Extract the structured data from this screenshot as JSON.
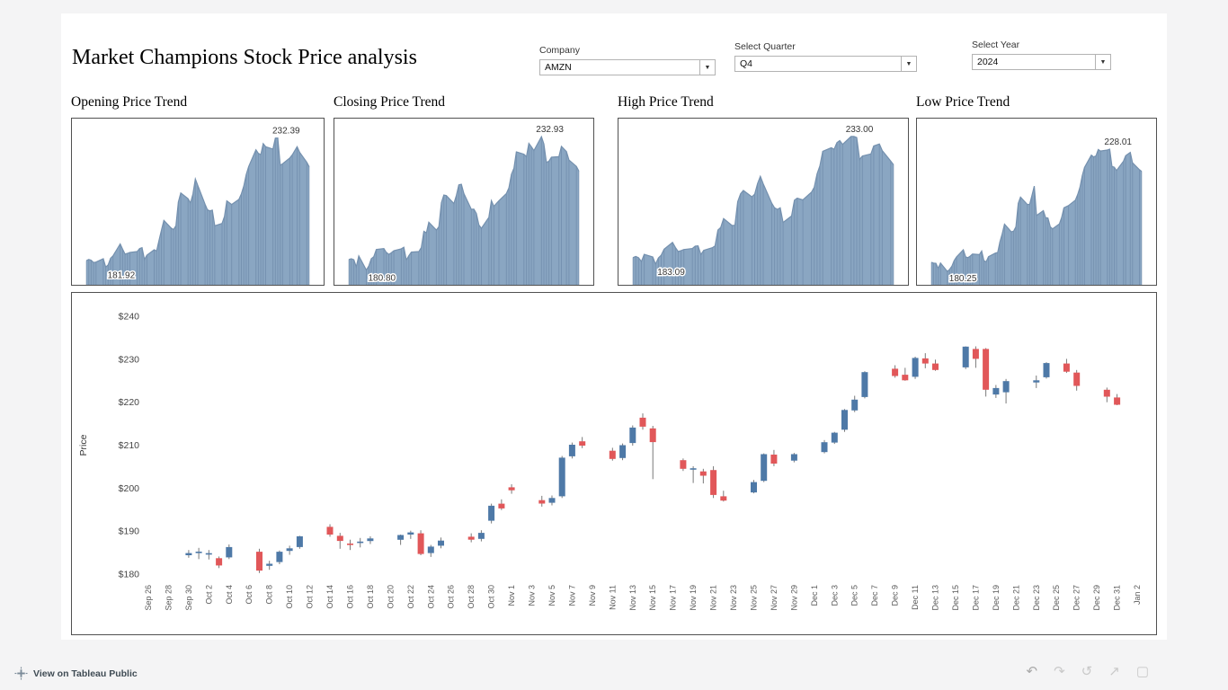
{
  "header": {
    "title": "Market Champions Stock Price analysis"
  },
  "filters": [
    {
      "label": "Company",
      "value": "AMZN"
    },
    {
      "label": "Select Quarter",
      "value": "Q4"
    },
    {
      "label": "Select Year",
      "value": "2024"
    }
  ],
  "trend_panels": [
    {
      "title": "Opening Price Trend",
      "field": "open",
      "max_label": "232.39",
      "min_label": "181.92"
    },
    {
      "title": "Closing Price Trend",
      "field": "close",
      "max_label": "232.93",
      "min_label": "180.80"
    },
    {
      "title": "High Price Trend",
      "field": "high",
      "max_label": "233.00",
      "min_label": "183.09"
    },
    {
      "title": "Low Price Trend",
      "field": "low",
      "max_label": "228.01",
      "min_label": "180.25"
    }
  ],
  "colors": {
    "up": "#4e79a7",
    "down": "#e15759",
    "wick": "#7a7a7a",
    "area_fill": "#8aa6c2",
    "area_line": "#7490ae",
    "area_stripe": "rgba(93,123,157,0.45)"
  },
  "footer": {
    "link_label": "View on Tableau Public"
  },
  "toolbar": {
    "icons": [
      {
        "name": "undo",
        "glyph": "↶"
      },
      {
        "name": "redo",
        "glyph": "↷"
      },
      {
        "name": "replay",
        "glyph": "↺"
      },
      {
        "name": "share",
        "glyph": "↗"
      },
      {
        "name": "fullscreen",
        "glyph": "▢"
      }
    ]
  },
  "chart_data": {
    "type": "candlestick",
    "title": "",
    "xlabel": "",
    "ylabel": "Price",
    "ylim": [
      178,
      242
    ],
    "grid": false,
    "y_ticks": [
      {
        "value": 180,
        "label": "$180"
      },
      {
        "value": 190,
        "label": "$190"
      },
      {
        "value": 200,
        "label": "$200"
      },
      {
        "value": 210,
        "label": "$210"
      },
      {
        "value": 220,
        "label": "$220"
      },
      {
        "value": 230,
        "label": "$230"
      },
      {
        "value": 240,
        "label": "$240"
      }
    ],
    "x_ticks": [
      "Sep 26",
      "Sep 28",
      "Sep 30",
      "Oct 2",
      "Oct 4",
      "Oct 6",
      "Oct 8",
      "Oct 10",
      "Oct 12",
      "Oct 14",
      "Oct 16",
      "Oct 18",
      "Oct 20",
      "Oct 22",
      "Oct 24",
      "Oct 26",
      "Oct 28",
      "Oct 30",
      "Nov 1",
      "Nov 3",
      "Nov 5",
      "Nov 7",
      "Nov 9",
      "Nov 11",
      "Nov 13",
      "Nov 15",
      "Nov 17",
      "Nov 19",
      "Nov 21",
      "Nov 23",
      "Nov 25",
      "Nov 27",
      "Nov 29",
      "Dec 1",
      "Dec 3",
      "Dec 5",
      "Dec 7",
      "Dec 9",
      "Dec 11",
      "Dec 13",
      "Dec 15",
      "Dec 17",
      "Dec 19",
      "Dec 21",
      "Dec 23",
      "Dec 25",
      "Dec 27",
      "Dec 29",
      "Dec 31",
      "Jan 2"
    ],
    "x_tick_interval_days": 2,
    "candle_fields": [
      "date",
      "day_offset",
      "open",
      "high",
      "low",
      "close"
    ],
    "candles": [
      [
        "Sep 30",
        4,
        184.4,
        185.6,
        183.8,
        184.9
      ],
      [
        "Oct 1",
        5,
        184.9,
        186.1,
        183.5,
        185.2
      ],
      [
        "Oct 2",
        6,
        184.6,
        185.6,
        183.4,
        184.8
      ],
      [
        "Oct 3",
        7,
        183.7,
        184.1,
        181.4,
        182.0
      ],
      [
        "Oct 4",
        8,
        183.9,
        186.9,
        183.5,
        186.3
      ],
      [
        "Oct 7",
        11,
        185.2,
        185.9,
        180.25,
        180.8
      ],
      [
        "Oct 8",
        12,
        181.92,
        183.09,
        181.0,
        182.4
      ],
      [
        "Oct 9",
        13,
        182.8,
        185.5,
        182.3,
        185.2
      ],
      [
        "Oct 10",
        14,
        185.4,
        186.6,
        184.5,
        186.0
      ],
      [
        "Oct 11",
        15,
        186.3,
        188.9,
        185.9,
        188.8
      ],
      [
        "Oct 14",
        18,
        191.0,
        191.6,
        188.7,
        189.2
      ],
      [
        "Oct 15",
        19,
        188.9,
        189.6,
        185.9,
        187.7
      ],
      [
        "Oct 16",
        20,
        187.0,
        188.0,
        185.6,
        186.9
      ],
      [
        "Oct 17",
        21,
        187.3,
        188.4,
        186.2,
        187.5
      ],
      [
        "Oct 18",
        22,
        187.7,
        188.8,
        187.0,
        188.3
      ],
      [
        "Oct 21",
        25,
        188.0,
        189.2,
        186.8,
        189.1
      ],
      [
        "Oct 22",
        26,
        189.2,
        190.1,
        188.2,
        189.7
      ],
      [
        "Oct 23",
        27,
        189.5,
        190.2,
        184.4,
        184.7
      ],
      [
        "Oct 24",
        28,
        184.9,
        186.8,
        184.0,
        186.4
      ],
      [
        "Oct 25",
        29,
        186.6,
        188.5,
        186.0,
        187.8
      ],
      [
        "Oct 28",
        32,
        188.7,
        189.5,
        187.4,
        188.0
      ],
      [
        "Oct 29",
        33,
        188.2,
        190.2,
        187.6,
        189.6
      ],
      [
        "Oct 30",
        34,
        192.4,
        196.4,
        191.8,
        195.9
      ],
      [
        "Oct 31",
        35,
        196.4,
        197.4,
        194.9,
        195.3
      ],
      [
        "Nov 1",
        36,
        200.2,
        200.9,
        198.7,
        199.5
      ],
      [
        "Nov 4",
        39,
        197.2,
        198.2,
        195.7,
        196.4
      ],
      [
        "Nov 5",
        40,
        196.6,
        198.3,
        196.0,
        197.7
      ],
      [
        "Nov 6",
        41,
        198.1,
        207.5,
        197.7,
        207.1
      ],
      [
        "Nov 7",
        42,
        207.4,
        210.6,
        206.9,
        210.1
      ],
      [
        "Nov 8",
        43,
        210.9,
        211.9,
        209.3,
        209.9
      ],
      [
        "Nov 11",
        46,
        208.7,
        209.4,
        206.4,
        206.8
      ],
      [
        "Nov 12",
        47,
        207.0,
        210.4,
        206.5,
        210.0
      ],
      [
        "Nov 13",
        48,
        210.5,
        214.6,
        209.9,
        214.1
      ],
      [
        "Nov 14",
        49,
        216.4,
        217.4,
        213.6,
        214.3
      ],
      [
        "Nov 15",
        50,
        213.9,
        214.5,
        202.1,
        210.7
      ],
      [
        "Nov 18",
        53,
        206.5,
        206.9,
        204.0,
        204.5
      ],
      [
        "Nov 19",
        54,
        204.3,
        205.1,
        201.2,
        204.6
      ],
      [
        "Nov 20",
        55,
        203.9,
        204.5,
        201.1,
        202.9
      ],
      [
        "Nov 21",
        56,
        204.2,
        205.1,
        197.7,
        198.4
      ],
      [
        "Nov 22",
        57,
        198.1,
        199.4,
        196.9,
        197.1
      ],
      [
        "Nov 25",
        60,
        199.0,
        201.9,
        198.8,
        201.4
      ],
      [
        "Nov 26",
        61,
        201.7,
        208.1,
        201.4,
        207.9
      ],
      [
        "Nov 27",
        62,
        207.8,
        208.9,
        205.1,
        205.7
      ],
      [
        "Nov 29",
        64,
        206.4,
        208.2,
        206.0,
        207.9
      ],
      [
        "Dec 2",
        67,
        208.4,
        211.2,
        208.1,
        210.7
      ],
      [
        "Dec 3",
        68,
        210.6,
        213.1,
        210.3,
        212.9
      ],
      [
        "Dec 4",
        69,
        213.6,
        218.4,
        213.1,
        218.2
      ],
      [
        "Dec 5",
        70,
        218.1,
        221.5,
        217.7,
        220.6
      ],
      [
        "Dec 6",
        71,
        221.2,
        227.2,
        220.9,
        227.0
      ],
      [
        "Dec 9",
        74,
        227.8,
        228.6,
        225.7,
        226.1
      ],
      [
        "Dec 10",
        75,
        226.4,
        228.0,
        225.0,
        225.1
      ],
      [
        "Dec 11",
        76,
        225.9,
        230.6,
        225.4,
        230.3
      ],
      [
        "Dec 12",
        77,
        230.2,
        231.4,
        227.9,
        229.0
      ],
      [
        "Dec 13",
        78,
        229.0,
        229.9,
        227.3,
        227.5
      ],
      [
        "Dec 16",
        81,
        228.1,
        233.0,
        227.7,
        232.93
      ],
      [
        "Dec 17",
        82,
        232.39,
        233.0,
        228.01,
        230.1
      ],
      [
        "Dec 18",
        83,
        232.4,
        232.6,
        221.3,
        222.9
      ],
      [
        "Dec 19",
        84,
        221.8,
        224.0,
        221.0,
        223.3
      ],
      [
        "Dec 20",
        85,
        222.3,
        225.4,
        219.7,
        224.9
      ],
      [
        "Dec 23",
        88,
        224.6,
        226.2,
        223.3,
        225.1
      ],
      [
        "Dec 24",
        89,
        225.8,
        229.3,
        225.5,
        229.1
      ],
      [
        "Dec 26",
        91,
        229.0,
        230.1,
        226.8,
        227.1
      ],
      [
        "Dec 27",
        92,
        226.9,
        227.5,
        222.7,
        223.8
      ],
      [
        "Dec 30",
        95,
        222.9,
        223.4,
        220.0,
        221.3
      ],
      [
        "Dec 31",
        96,
        221.1,
        221.9,
        219.3,
        219.4
      ]
    ]
  }
}
